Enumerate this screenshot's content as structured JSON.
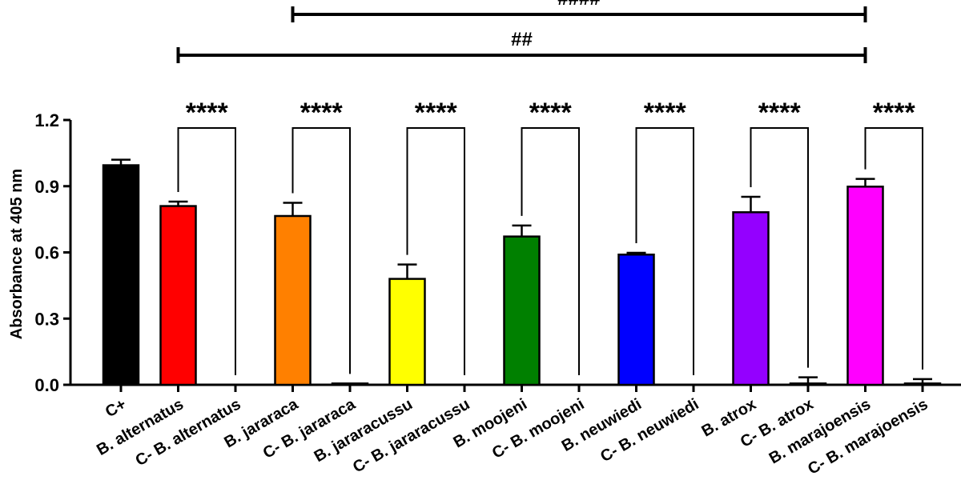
{
  "chart_data": {
    "type": "bar",
    "ylabel": "Absorbance at 405 nm",
    "xlabel": "",
    "ylim": [
      0,
      1.2
    ],
    "yticks": [
      "0.0",
      "0.3",
      "0.6",
      "0.9",
      "1.2"
    ],
    "categories": [
      "C+",
      "B. alternatus",
      "C- B. alternatus",
      "B. jararaca",
      "C- B. jararaca",
      "B. jararacussu",
      "C- B. jararacussu",
      "B. moojeni",
      "C- B. moojeni",
      "B. neuwiedi",
      "C- B. neuwiedi",
      "B. atrox",
      "C- B. atrox",
      "B. marajoensis",
      "C- B. marajoensis"
    ],
    "values": [
      0.995,
      0.81,
      0.0,
      0.765,
      0.006,
      0.48,
      0.0,
      0.672,
      0.0,
      0.59,
      0.0,
      0.782,
      0.006,
      0.898,
      0.006
    ],
    "errors": [
      0.025,
      0.02,
      0.0,
      0.06,
      0.0,
      0.065,
      0.0,
      0.05,
      0.0,
      0.008,
      0.0,
      0.07,
      0.028,
      0.035,
      0.02
    ],
    "colors": [
      "#000000",
      "#ff0000",
      "#ffffff",
      "#ff8000",
      "#ffffff",
      "#ffff00",
      "#ffffff",
      "#008000",
      "#ffffff",
      "#0000ff",
      "#ffffff",
      "#9400ff",
      "#ffffff",
      "#ff00ff",
      "#ffffff"
    ],
    "comparisons": [
      {
        "from": 1,
        "to": 2,
        "label": "****"
      },
      {
        "from": 3,
        "to": 4,
        "label": "****"
      },
      {
        "from": 5,
        "to": 6,
        "label": "****"
      },
      {
        "from": 7,
        "to": 8,
        "label": "****"
      },
      {
        "from": 9,
        "to": 10,
        "label": "****"
      },
      {
        "from": 11,
        "to": 12,
        "label": "****"
      },
      {
        "from": 13,
        "to": 14,
        "label": "****"
      }
    ],
    "brackets": [
      {
        "from": 3,
        "to": 13,
        "label": "####"
      },
      {
        "from": 1,
        "to": 13,
        "label": "##"
      }
    ],
    "grid": false,
    "legend": "none"
  }
}
